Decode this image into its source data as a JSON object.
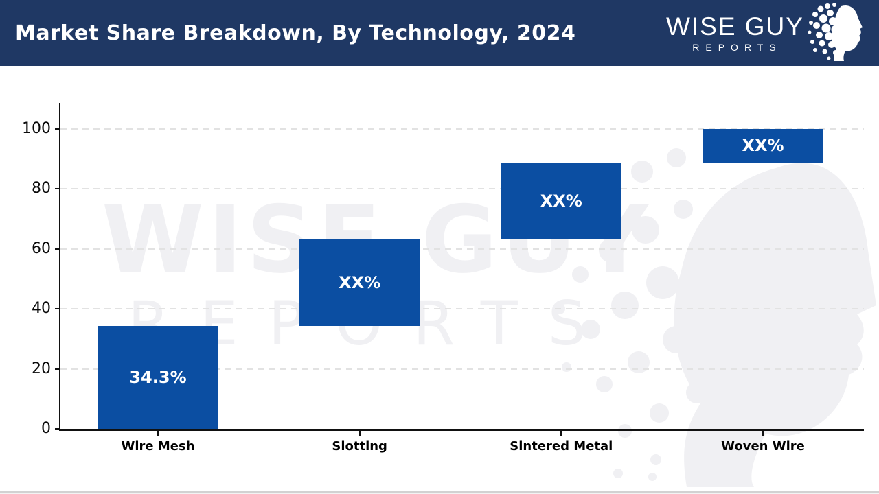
{
  "header": {
    "title": "Market Share Breakdown, By Technology, 2024",
    "logo": {
      "wordmark": "WISE GUY",
      "subtitle": "REPORTS"
    }
  },
  "watermark": {
    "wordmark": "WISE GUY",
    "subtitle": "REPORTS"
  },
  "colors": {
    "header_bg": "#1F3864",
    "bar": "#0B4EA2",
    "grid": "#E2E2E2",
    "axis": "#111111",
    "bar_label": "#FFFFFF",
    "watermark": "#F0F0F3",
    "background": "#FFFFFF"
  },
  "chart_data": {
    "type": "bar",
    "subtype": "waterfall",
    "title": "Market Share Breakdown, By Technology, 2024",
    "xlabel": "",
    "ylabel": "",
    "categories": [
      "Wire Mesh",
      "Slotting",
      "Sintered Metal",
      "Woven Wire"
    ],
    "series": [
      {
        "name": "Market Share",
        "segments": [
          {
            "category": "Wire Mesh",
            "start": 0,
            "end": 34.3,
            "label": "34.3%"
          },
          {
            "category": "Slotting",
            "start": 34.3,
            "end": 63.2,
            "label": "XX%"
          },
          {
            "category": "Sintered Metal",
            "start": 63.2,
            "end": 88.8,
            "label": "XX%"
          },
          {
            "category": "Woven Wire",
            "start": 88.8,
            "end": 100,
            "label": "XX%"
          }
        ]
      }
    ],
    "y_ticks": [
      0,
      20,
      40,
      60,
      80,
      100
    ],
    "y_tick_labels": [
      "0",
      "20",
      "40",
      "60",
      "80",
      "100"
    ],
    "ylim": [
      0,
      108
    ],
    "grid": "horizontal-dashed",
    "legend": "none"
  }
}
